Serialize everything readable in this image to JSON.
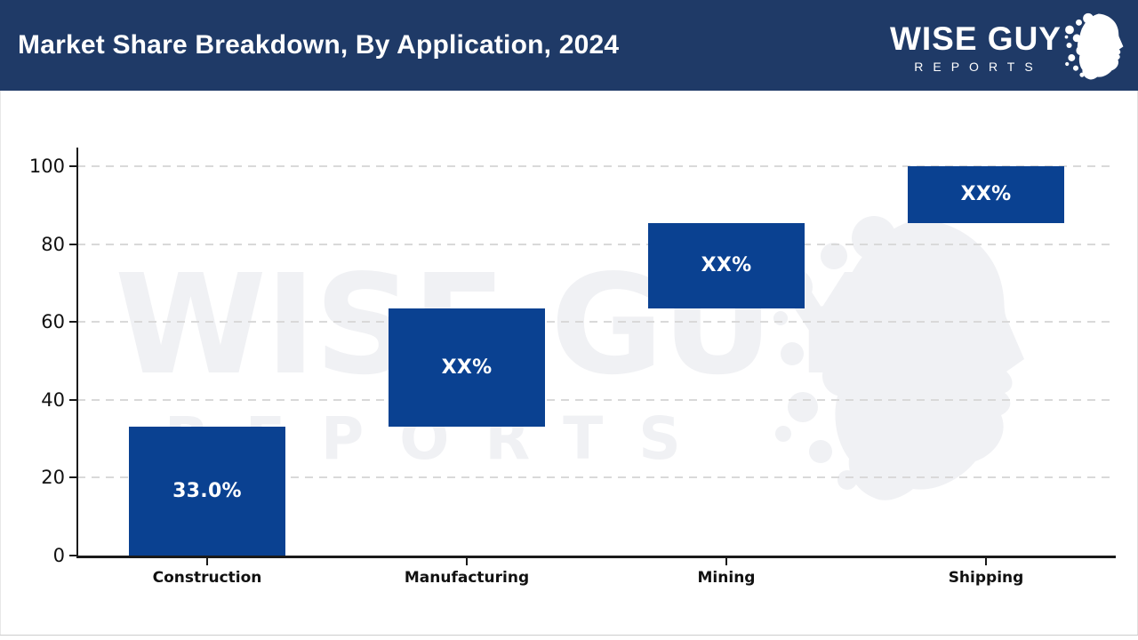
{
  "header": {
    "title": "Market Share Breakdown, By Application, 2024",
    "logo": {
      "wordmark": "WISE GUY",
      "subtext": "REPORTS"
    }
  },
  "watermark": {
    "wordmark": "WISE GUY",
    "subtext": "REPORTS"
  },
  "chart_data": {
    "type": "bar",
    "subtype": "waterfall",
    "title": "Market Share Breakdown, By Application, 2024",
    "categories": [
      "Construction",
      "Manufacturing",
      "Mining",
      "Shipping"
    ],
    "series": [
      {
        "name": "Market share (%)",
        "segments": [
          {
            "category": "Construction",
            "start": 0,
            "end": 33.0,
            "label": "33.0%"
          },
          {
            "category": "Manufacturing",
            "start": 33.0,
            "end": 63.5,
            "label": "XX%"
          },
          {
            "category": "Mining",
            "start": 63.5,
            "end": 85.5,
            "label": "XX%"
          },
          {
            "category": "Shipping",
            "start": 85.5,
            "end": 100.0,
            "label": "XX%"
          }
        ]
      }
    ],
    "xlabel": "",
    "ylabel": "",
    "ylim": [
      0,
      100
    ],
    "yticks": [
      0,
      20,
      40,
      60,
      80,
      100
    ],
    "grid": "horizontal-dashed",
    "legend": "none",
    "colors": {
      "bar": "#0a4191",
      "bar_label": "#ffffff",
      "axis": "#1a1a1a",
      "gridline": "#d9d9d9"
    }
  },
  "colors": {
    "header_bg": "#1f3a67",
    "header_text": "#ffffff",
    "watermark": "#f0f1f4",
    "divider": "#cccccc"
  }
}
